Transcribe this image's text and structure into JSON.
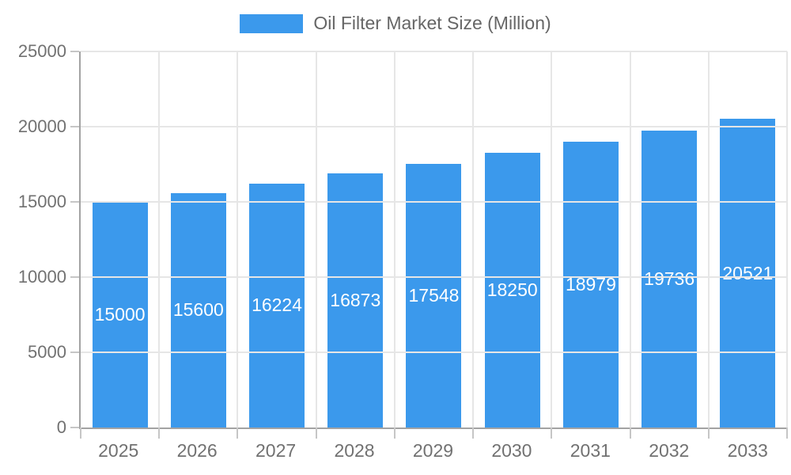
{
  "legend": {
    "label": "Oil Filter Market Size (Million)"
  },
  "colors": {
    "bar": "#3b99ec",
    "grid": "#e6e6e6",
    "axis_line": "#a3a3a3",
    "tick": "#c6c6c6",
    "axis_text": "#717171",
    "bar_label": "#ffffff",
    "background": "#ffffff"
  },
  "chart_data": {
    "type": "bar",
    "title": "",
    "categories": [
      "2025",
      "2026",
      "2027",
      "2028",
      "2029",
      "2030",
      "2031",
      "2032",
      "2033"
    ],
    "series": [
      {
        "name": "Oil Filter Market Size (Million)",
        "values": [
          15000,
          15600,
          16224,
          16873,
          17548,
          18250,
          18979,
          19736,
          20521
        ]
      }
    ],
    "bar_value_labels": [
      15000,
      15600,
      16224,
      16873,
      17548,
      18250,
      18979,
      19736,
      20521
    ],
    "xlabel": "",
    "ylabel": "",
    "ylim": [
      0,
      25000
    ],
    "y_ticks": [
      0,
      5000,
      10000,
      15000,
      20000,
      25000
    ],
    "grid": true,
    "legend_position": "top"
  }
}
